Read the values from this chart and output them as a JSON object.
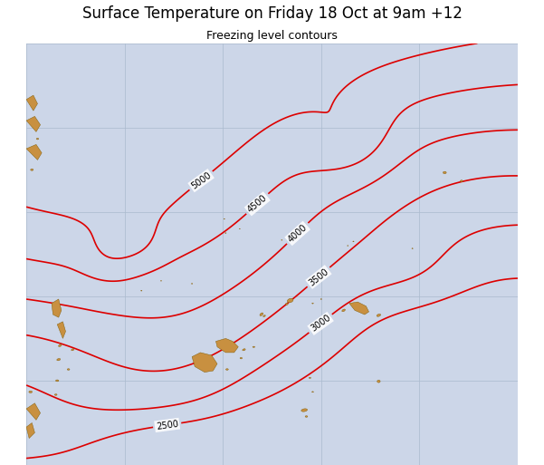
{
  "title": "Surface Temperature on Friday 18 Oct at 9am +12",
  "subtitle": "Freezing level contours",
  "map_bg": "#ccd6e8",
  "grid_color": "#aabace",
  "contour_color": "#dd0000",
  "land_color": "#c89040",
  "land_edge": "#7a5800",
  "title_fontsize": 12,
  "subtitle_fontsize": 9,
  "fig_w": 6.01,
  "fig_h": 5.13,
  "dpi": 100,
  "lon_min": 165.0,
  "lon_max": 200.0,
  "lat_min": -25.0,
  "lat_max": 5.0,
  "contour_levels": [
    2500,
    3000,
    3500,
    4000,
    4500,
    5000
  ],
  "label_fontsize": 7
}
